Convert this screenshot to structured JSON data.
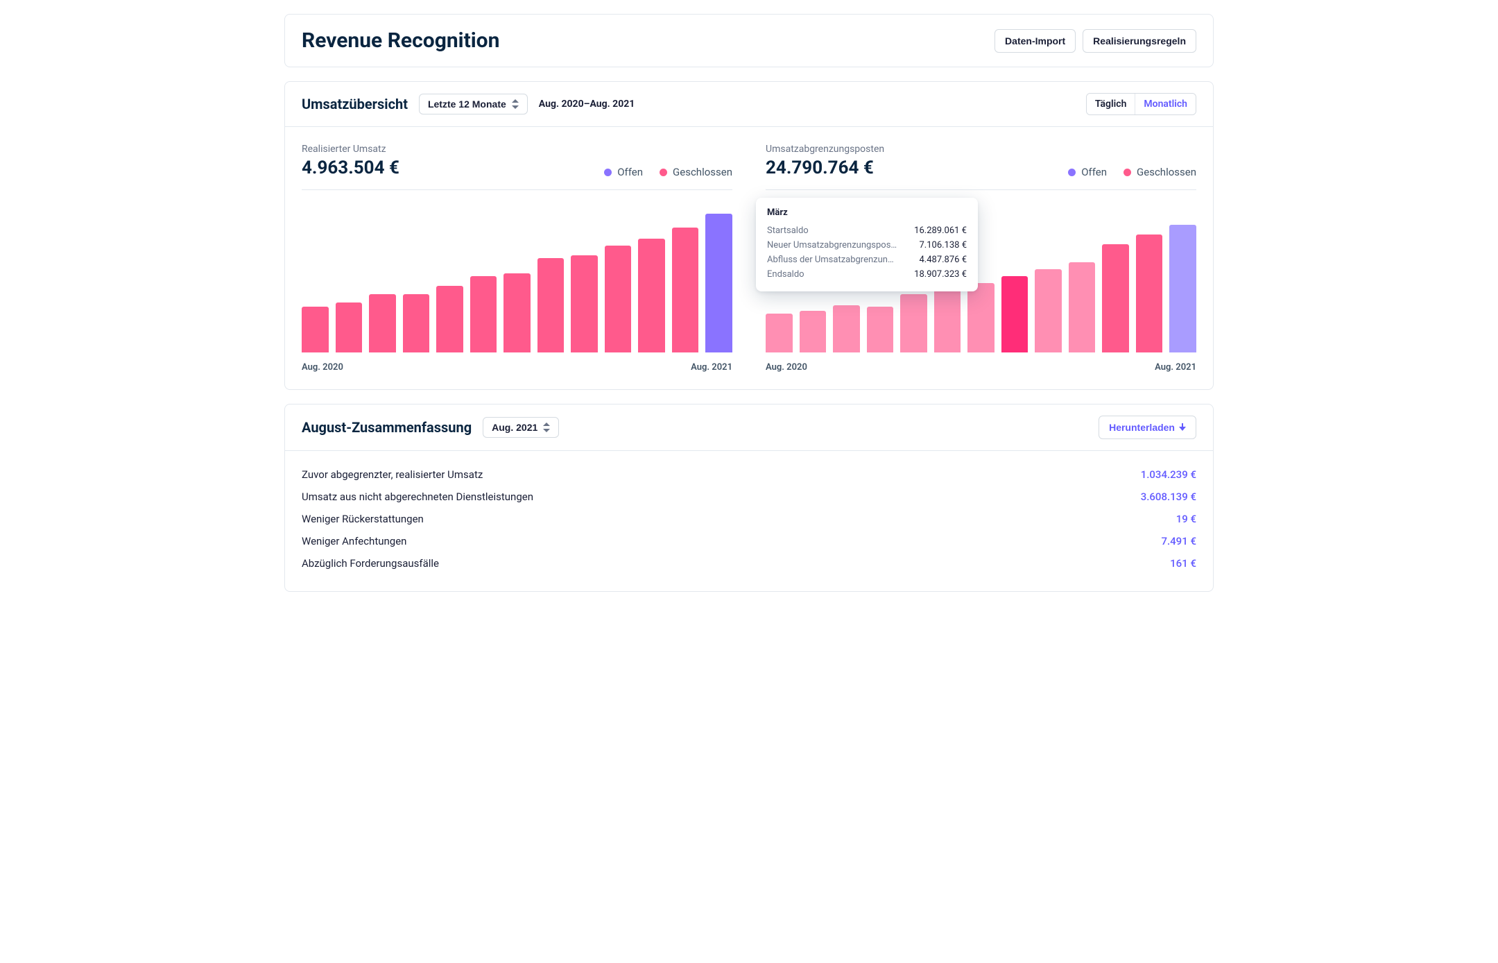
{
  "header": {
    "title": "Revenue Recognition",
    "import_label": "Daten-Import",
    "rules_label": "Realisierungsregeln"
  },
  "overview": {
    "title": "Umsatzübersicht",
    "period_selector": "Letzte 12 Monate",
    "date_range": "Aug. 2020–Aug. 2021",
    "toggle": {
      "daily": "Täglich",
      "monthly": "Monatlich",
      "active": "monthly"
    },
    "legend": {
      "open": "Offen",
      "closed": "Geschlossen"
    },
    "colors": {
      "open": "#8a73ff",
      "closed": "#ff5a8c",
      "closed_faded": "#ff8fb3",
      "closed_highlight": "#ff2d78",
      "axis_text": "#425466",
      "metric_label": "#697386"
    },
    "axis": {
      "start": "Aug. 2020",
      "end": "Aug. 2021"
    },
    "chart1": {
      "label": "Realisierter Umsatz",
      "value": "4.963.504 €",
      "type": "bar",
      "bar_heights_pct": [
        33,
        36,
        42,
        42,
        48,
        55,
        57,
        68,
        70,
        77,
        82,
        90,
        100
      ],
      "bar_colors": [
        "#ff5a8c",
        "#ff5a8c",
        "#ff5a8c",
        "#ff5a8c",
        "#ff5a8c",
        "#ff5a8c",
        "#ff5a8c",
        "#ff5a8c",
        "#ff5a8c",
        "#ff5a8c",
        "#ff5a8c",
        "#ff5a8c",
        "#8a73ff"
      ]
    },
    "chart2": {
      "label": "Umsatzabgrenzungsposten",
      "value": "24.790.764 €",
      "type": "bar",
      "bar_heights_pct": [
        28,
        30,
        34,
        33,
        42,
        46,
        50,
        55,
        60,
        65,
        78,
        85,
        92
      ],
      "bar_colors": [
        "#ff8fb3",
        "#ff8fb3",
        "#ff8fb3",
        "#ff8fb3",
        "#ff8fb3",
        "#ff8fb3",
        "#ff8fb3",
        "#ff2d78",
        "#ff8fb3",
        "#ff8fb3",
        "#ff5a8c",
        "#ff5a8c",
        "#a99cff"
      ],
      "tooltip": {
        "title": "März",
        "rows": [
          {
            "label": "Startsaldo",
            "value": "16.289.061 €"
          },
          {
            "label": "Neuer Umsatzabgrenzungspos…",
            "value": "7.106.138 €"
          },
          {
            "label": "Abfluss der Umsatzabgrenzun…",
            "value": "4.487.876 €"
          },
          {
            "label": "Endsaldo",
            "value": "18.907.323 €"
          }
        ]
      }
    }
  },
  "summary": {
    "title": "August-Zusammenfassung",
    "month_selector": "Aug. 2021",
    "download_label": "Herunterladen",
    "rows": [
      {
        "label": "Zuvor abgegrenzter, realisierter Umsatz",
        "value": "1.034.239 €"
      },
      {
        "label": "Umsatz aus nicht abgerechneten Dienstleistungen",
        "value": "3.608.139 €"
      },
      {
        "label": "Weniger Rückerstattungen",
        "value": "19 €"
      },
      {
        "label": "Weniger Anfechtungen",
        "value": "7.491 €"
      },
      {
        "label": "Abzüglich Forderungsausfälle",
        "value": "161 €"
      }
    ]
  }
}
